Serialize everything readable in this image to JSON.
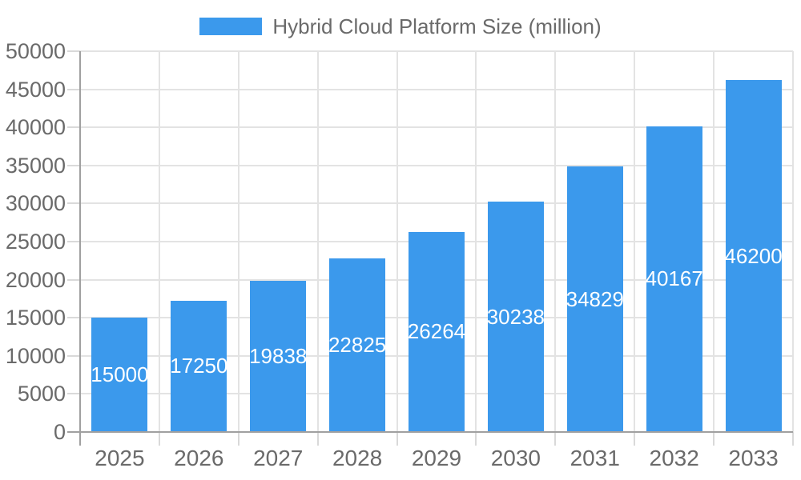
{
  "legend": {
    "label": "Hybrid Cloud Platform Size (million)"
  },
  "chart_data": {
    "type": "bar",
    "title": "",
    "xlabel": "",
    "ylabel": "",
    "categories": [
      "2025",
      "2026",
      "2027",
      "2028",
      "2029",
      "2030",
      "2031",
      "2032",
      "2033"
    ],
    "series": [
      {
        "name": "Hybrid Cloud Platform Size (million)",
        "values": [
          15000,
          17250,
          19838,
          22825,
          26264,
          30238,
          34829,
          40167,
          46200
        ]
      }
    ],
    "bar_labels": [
      "15000",
      "17250",
      "19838",
      "22825",
      "26264",
      "30238",
      "34829",
      "40167",
      "46200"
    ],
    "ylim": [
      0,
      50000
    ],
    "yticks": [
      0,
      5000,
      10000,
      15000,
      20000,
      25000,
      30000,
      35000,
      40000,
      45000,
      50000
    ],
    "grid": true,
    "legend_position": "top-center",
    "value_labels_position": "inside-center"
  },
  "colors": {
    "background": "#FFFFFF",
    "bar": "#3B99EC",
    "bar_label": "#FFFFFF",
    "axis_line": "#A0A0A0",
    "grid_line": "#E3E3E3",
    "tick_mark": "#D9D9D9",
    "tick_label": "#6A6A6A",
    "legend_text": "#6A6A6A"
  }
}
